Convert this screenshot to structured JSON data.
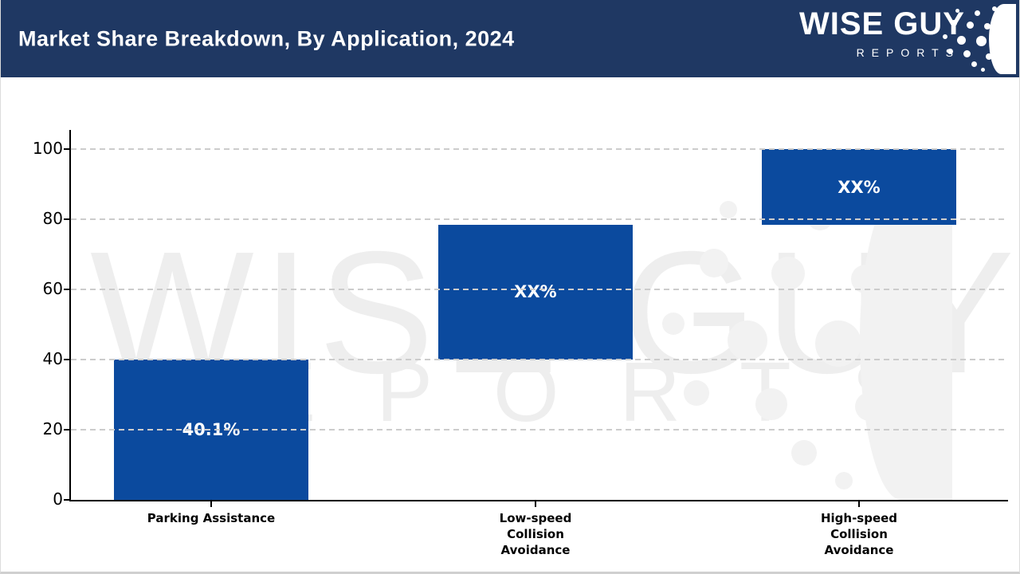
{
  "header": {
    "title": "Market Share Breakdown, By Application, 2024",
    "logo": {
      "line1": "WISE GUY",
      "line2": "REPORTS"
    }
  },
  "watermark": {
    "line1": "WISE GUY",
    "line2": "REPORTS"
  },
  "chart_data": {
    "type": "bar",
    "subtype": "floating-waterfall",
    "title": "Market Share Breakdown, By Application, 2024",
    "categories": [
      "Parking Assistance",
      "Low-speed\nCollision\nAvoidance",
      "High-speed\nCollision\nAvoidance"
    ],
    "series": [
      {
        "name": "Market Share %",
        "segments": [
          {
            "category": "Parking Assistance",
            "start": 0,
            "end": 40.1,
            "label": "40.1%"
          },
          {
            "category": "Low-speed Collision Avoidance",
            "start": 40.1,
            "end": 78.4,
            "label": "XX%"
          },
          {
            "category": "High-speed Collision Avoidance",
            "start": 78.4,
            "end": 100,
            "label": "XX%"
          }
        ]
      }
    ],
    "xlabel": "",
    "ylabel": "",
    "ylim": [
      0,
      105
    ],
    "yticks": [
      0,
      20,
      40,
      60,
      80,
      100
    ],
    "grid": "dashed-horizontal-over-bars",
    "legend": "none",
    "bar_color": "#0b4a9e",
    "label_color": "#ffffff",
    "header_color": "#1f3863"
  }
}
